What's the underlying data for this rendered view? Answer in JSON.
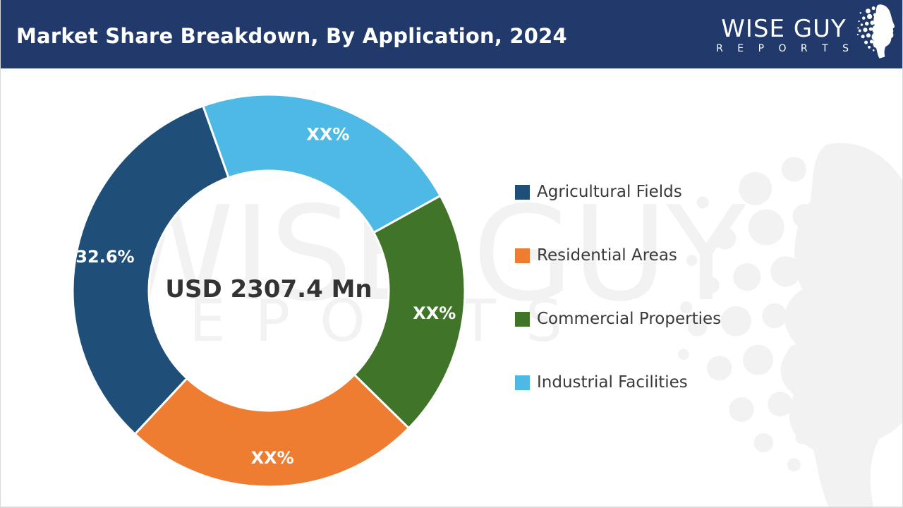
{
  "header": {
    "title": "Market Share Breakdown, By Application, 2024",
    "logo": {
      "line1": "WISE GUY",
      "line2": "R E P O R T S"
    }
  },
  "watermark": {
    "line1": "WISE GUY",
    "line2": "REPORTS"
  },
  "chart_data": {
    "type": "donut",
    "title": "Market Share Breakdown, By Application, 2024",
    "center_label": "USD 2307.4 Mn",
    "start_angle_deg": -19.6,
    "legend_position": "right",
    "segments": [
      {
        "name": "Industrial Facilities",
        "label": "XX%",
        "value_pct": 22.4,
        "color": "#4DB9E4"
      },
      {
        "name": "Commercial Properties",
        "label": "XX%",
        "value_pct": 20.4,
        "color": "#407428"
      },
      {
        "name": "Residential Areas",
        "label": "XX%",
        "value_pct": 24.6,
        "color": "#EE7D31"
      },
      {
        "name": "Agricultural Fields",
        "label": "32.6%",
        "value_pct": 32.6,
        "color": "#1F4E79"
      }
    ],
    "legend_order": [
      "Agricultural Fields",
      "Residential Areas",
      "Commercial Properties",
      "Industrial Facilities"
    ]
  },
  "colors": {
    "header_bg": "#213A6B",
    "watermark": "#f2f2f2",
    "center_text": "#333333",
    "legend_text": "#3a3a3a"
  }
}
